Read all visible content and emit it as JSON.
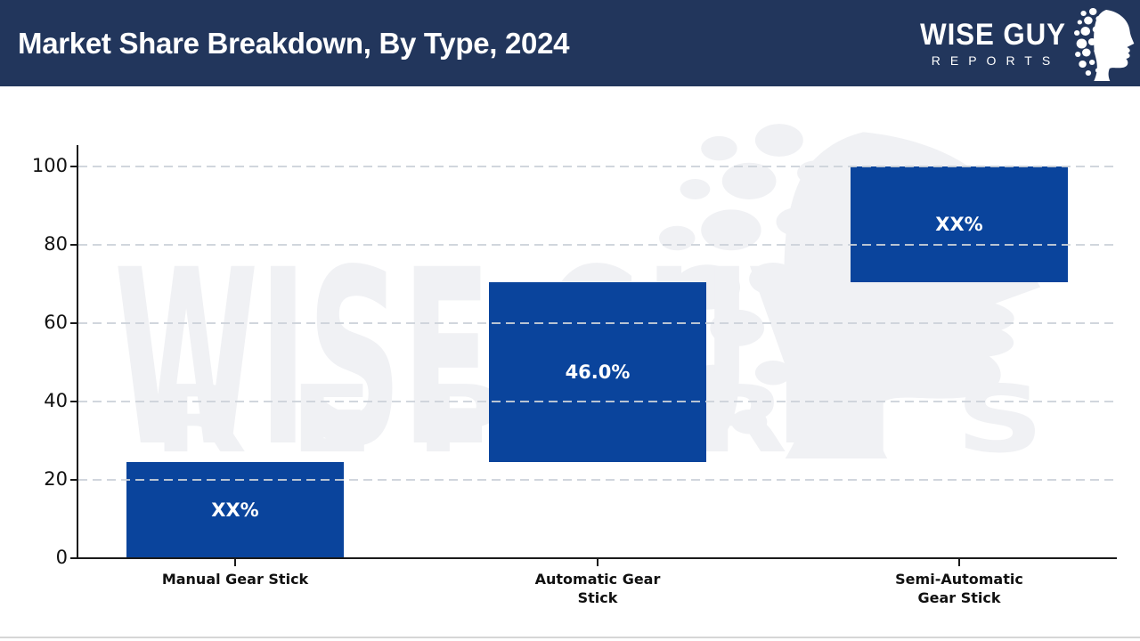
{
  "header": {
    "title": "Market Share Breakdown, By Type, 2024",
    "logo": {
      "line1": "WISE GUY",
      "line2": "REPORTS"
    }
  },
  "watermark": {
    "line1": "WISE GUY",
    "line2": "R E P O R T S"
  },
  "colors": {
    "header_bg": "#22365c",
    "bar": "#0a449c",
    "watermark": "#f0f1f4",
    "grid": "#ccd2d9",
    "axis": "#1a1a1a"
  },
  "chart_data": {
    "type": "bar",
    "subtype": "stacked-waterfall",
    "title": "Market Share Breakdown, By Type, 2024",
    "categories": [
      {
        "name": "Manual Gear Stick",
        "lines": [
          "Manual Gear Stick"
        ]
      },
      {
        "name": "Automatic Gear Stick",
        "lines": [
          "Automatic Gear",
          "Stick"
        ]
      },
      {
        "name": "Semi-Automatic Gear Stick",
        "lines": [
          "Semi-Automatic",
          "Gear Stick"
        ]
      }
    ],
    "segments": [
      {
        "category": "Manual Gear Stick",
        "start": 0,
        "end": 24.5,
        "value_label": "XX%"
      },
      {
        "category": "Automatic Gear Stick",
        "start": 24.5,
        "end": 70.5,
        "value": 46.0,
        "value_label": "46.0%"
      },
      {
        "category": "Semi-Automatic Gear Stick",
        "start": 70.5,
        "end": 100,
        "value_label": "XX%"
      }
    ],
    "xlabel": "",
    "ylabel": "",
    "yticks": [
      0,
      20,
      40,
      60,
      80,
      100
    ],
    "ylim": [
      0,
      105.5
    ],
    "grid": "dashed-horizontal",
    "legend": "none",
    "bar_color": "#0a449c"
  }
}
